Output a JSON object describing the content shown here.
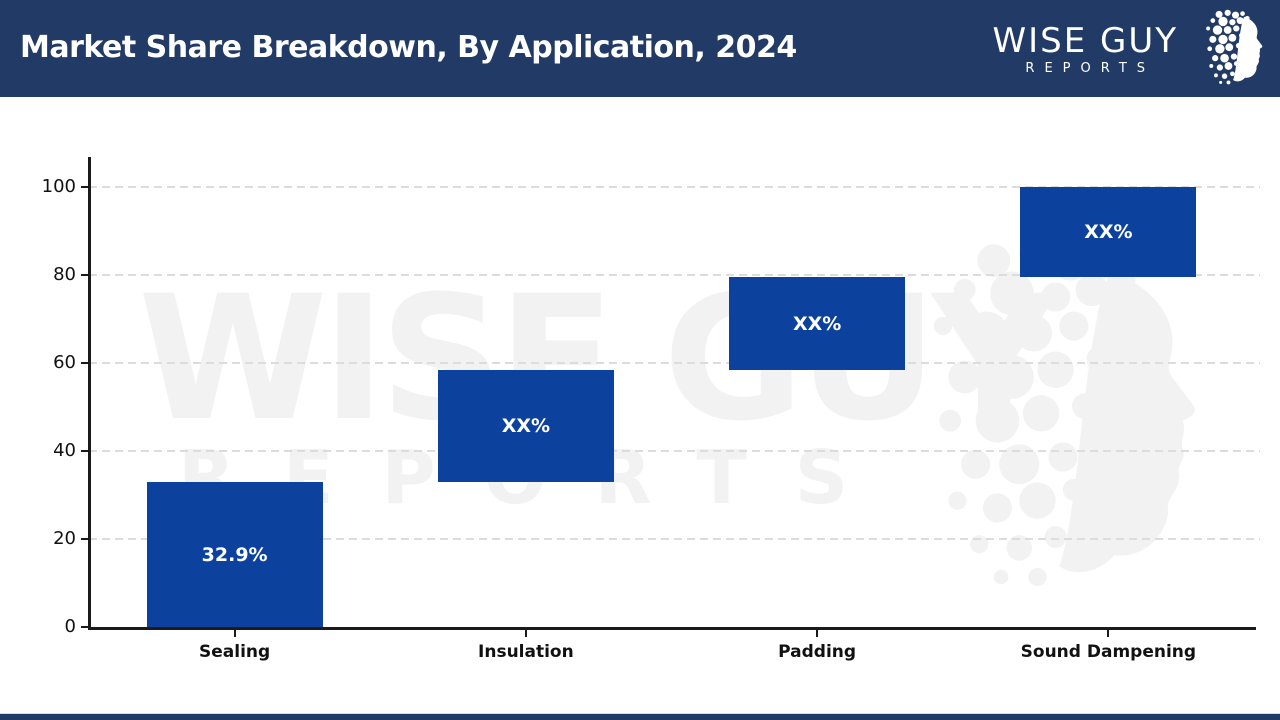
{
  "header": {
    "title": "Market Share Breakdown, By Application, 2024"
  },
  "logo": {
    "wordmark": "WISE GUY",
    "subtext": "REPORTS"
  },
  "watermark": {
    "wordmark": "WISE GUY",
    "subtext": "REPORTS"
  },
  "chart_data": {
    "type": "bar",
    "subtype": "waterfall",
    "title": "Market Share Breakdown, By Application, 2024",
    "categories": [
      "Sealing",
      "Insulation",
      "Padding",
      "Sound Dampening"
    ],
    "series": [
      {
        "name": "Market share (%)",
        "segments": [
          [
            0,
            32.9
          ],
          [
            32.9,
            58.3
          ],
          [
            58.3,
            79.5
          ],
          [
            79.5,
            100
          ]
        ]
      }
    ],
    "bar_labels": [
      "32.9%",
      "XX%",
      "XX%",
      "XX%"
    ],
    "xlabel": "",
    "ylabel": "",
    "ylim": [
      0,
      105
    ],
    "yticks": [
      0,
      20,
      40,
      60,
      80,
      100
    ],
    "grid": "horizontal-dashed",
    "legend": "none",
    "colors": {
      "bar": "#0c429d",
      "bar_label": "#ffffff",
      "header_bg": "#223a66",
      "grid": "#dcdcdc",
      "axis": "#1a1a1a",
      "watermark": "#f2f2f2"
    }
  }
}
